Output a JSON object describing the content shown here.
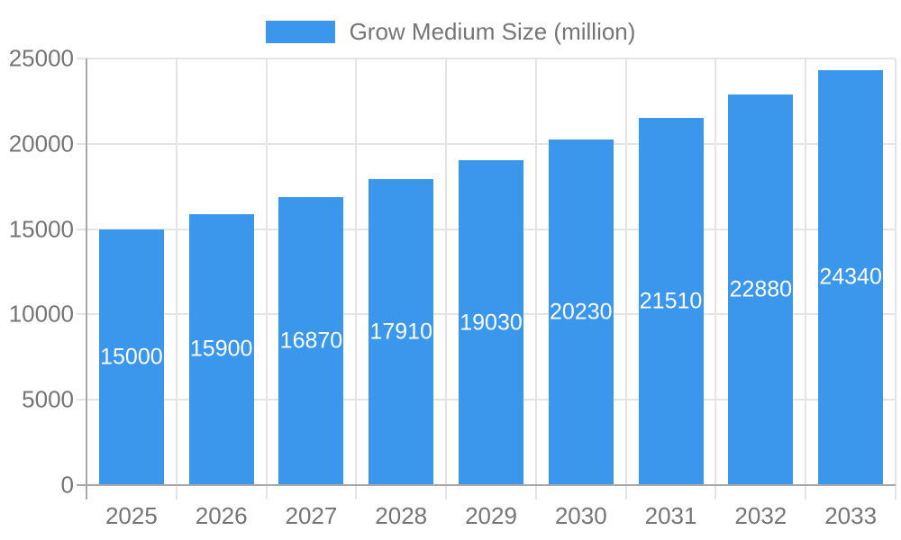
{
  "legend": {
    "label": "Grow Medium Size (million)",
    "swatch_color": "#3b97eb"
  },
  "chart_data": {
    "type": "bar",
    "title": "",
    "xlabel": "",
    "ylabel": "",
    "categories": [
      "2025",
      "2026",
      "2027",
      "2028",
      "2029",
      "2030",
      "2031",
      "2032",
      "2033"
    ],
    "series": [
      {
        "name": "Grow Medium Size (million)",
        "values": [
          15000,
          15900,
          16870,
          17910,
          19030,
          20230,
          21510,
          22880,
          24340
        ]
      }
    ],
    "bar_labels": [
      "15000",
      "15900",
      "16870",
      "17910",
      "19030",
      "20230",
      "21510",
      "22880",
      "24340"
    ],
    "ylim": [
      0,
      25000
    ],
    "yticks": [
      0,
      5000,
      10000,
      15000,
      20000,
      25000
    ],
    "ytick_labels": [
      "0",
      "5000",
      "10000",
      "15000",
      "20000",
      "25000"
    ],
    "grid": true,
    "legend_position": "top",
    "colors": {
      "bar": "#3b97eb",
      "axis_text": "#757575",
      "bar_label_text": "#ffffff",
      "gridline": "#e4e4e4",
      "axis_line": "#a8a8a8",
      "background": "#ffffff"
    }
  }
}
